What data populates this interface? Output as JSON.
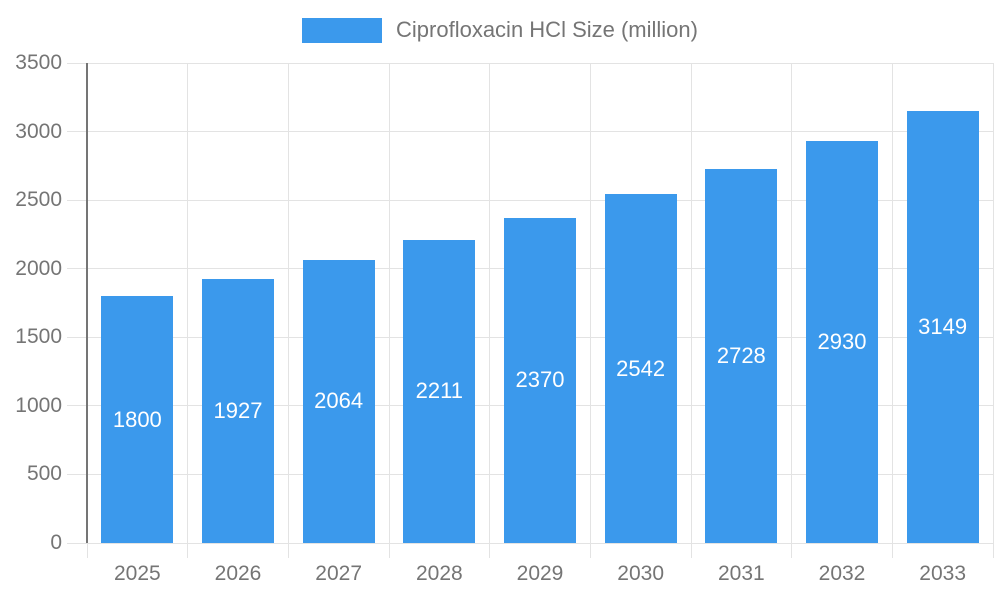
{
  "legend": {
    "label": "Ciprofloxacin HCl Size (million)"
  },
  "chart_data": {
    "type": "bar",
    "title": "",
    "categories": [
      "2025",
      "2026",
      "2027",
      "2028",
      "2029",
      "2030",
      "2031",
      "2032",
      "2033"
    ],
    "series": [
      {
        "name": "Ciprofloxacin HCl Size (million)",
        "values": [
          1800,
          1927,
          2064,
          2211,
          2370,
          2542,
          2728,
          2930,
          3149
        ]
      }
    ],
    "value_labels_shown": true,
    "xlabel": "",
    "ylabel": "",
    "ylim": [
      0,
      3500
    ],
    "ytick_step": 500,
    "ytick_labels": [
      "0",
      "500",
      "1000",
      "1500",
      "2000",
      "2500",
      "3000",
      "3500"
    ],
    "grid": true,
    "legend_position": "top-center",
    "colors": {
      "bar": "#3B99EC",
      "bar_value_text": "#ffffff",
      "axis_text": "#757575",
      "grid_line": "#E3E3E3",
      "axis_line": "#757575"
    }
  }
}
